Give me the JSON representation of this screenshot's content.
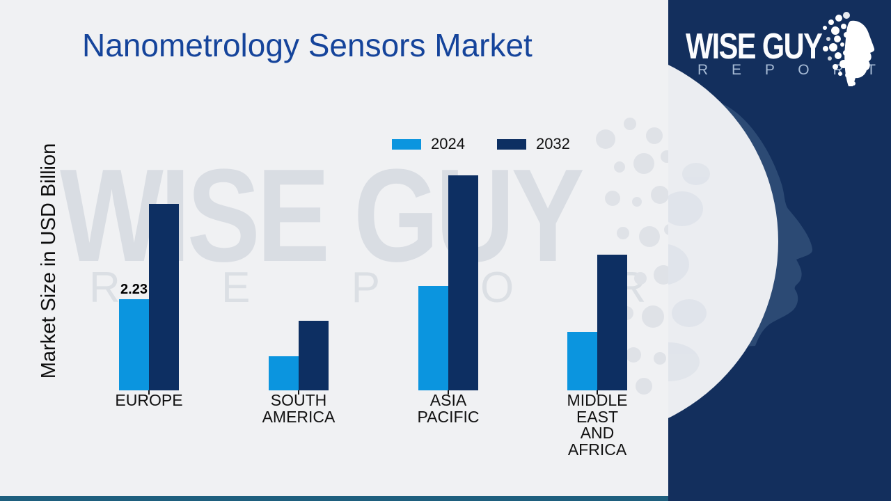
{
  "title": "Nanometrology Sensors Market",
  "colors": {
    "title": "#15449b",
    "background": "#f0f1f3",
    "bar_2024": "#0b95df",
    "bar_2032": "#0d2f62",
    "panel": "#132f5d",
    "teal_strip": "#1e5f7e",
    "watermark": "#d9dde3"
  },
  "watermark": {
    "line1": "WISE GUY",
    "line2": "R E P O R T S"
  },
  "brand": {
    "line1": "WISE GUY",
    "line2": "R E P O R T S"
  },
  "chart_data": {
    "type": "bar",
    "title": "Nanometrology Sensors Market",
    "xlabel": "",
    "ylabel": "Market Size in USD Billion",
    "ylim": [
      0,
      6
    ],
    "grid": false,
    "legend_position": "top-center",
    "categories": [
      "EUROPE",
      "SOUTH AMERICA",
      "ASIA PACIFIC",
      "MIDDLE EAST AND AFRICA"
    ],
    "category_lines": [
      [
        "EUROPE"
      ],
      [
        "SOUTH",
        "AMERICA"
      ],
      [
        "ASIA",
        "PACIFIC"
      ],
      [
        "MIDDLE",
        "EAST",
        "AND",
        "AFRICA"
      ]
    ],
    "series": [
      {
        "name": "2024",
        "color": "#0b95df",
        "values": [
          2.23,
          0.83,
          2.55,
          1.43
        ]
      },
      {
        "name": "2032",
        "color": "#0d2f62",
        "values": [
          4.56,
          1.7,
          5.26,
          3.32
        ]
      }
    ],
    "value_labels": [
      {
        "series_index": 0,
        "category_index": 0,
        "text": "2.23"
      }
    ]
  }
}
